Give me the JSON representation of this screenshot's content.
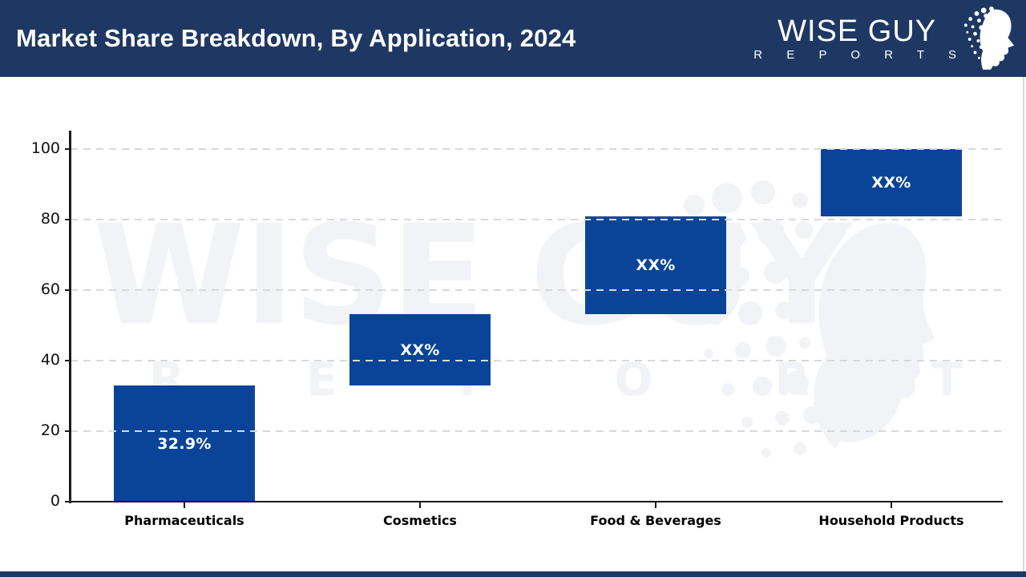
{
  "header": {
    "title": "Market Share Breakdown, By Application, 2024",
    "logo": {
      "line1": "WISE GUY",
      "line2": "R E P O R T S"
    }
  },
  "watermark": {
    "line1": "WISE GUY",
    "line2": "R E P O R T S"
  },
  "colors": {
    "header_bg": "#1f3863",
    "footer_bg": "#1f3863",
    "bar": "#0a4499",
    "grid": "#d9d9d9",
    "axis": "#1a1a1a",
    "value_label": "#ffffff",
    "watermark": "#f2f3f6",
    "edge_line": "#d9d9d9"
  },
  "chart_data": {
    "type": "bar",
    "variant": "waterfall",
    "title": "Market Share Breakdown, By Application, 2024",
    "categories": [
      "Pharmaceuticals",
      "Cosmetics",
      "Food & Beverages",
      "Household Products"
    ],
    "segments": [
      {
        "category": "Pharmaceuticals",
        "start": 0,
        "end": 32.9,
        "label": "32.9%"
      },
      {
        "category": "Cosmetics",
        "start": 32.9,
        "end": 53.2,
        "label": "XX%"
      },
      {
        "category": "Food & Beverages",
        "start": 53.2,
        "end": 80.9,
        "label": "XX%"
      },
      {
        "category": "Household Products",
        "start": 80.9,
        "end": 100,
        "label": "XX%"
      }
    ],
    "yticks": [
      0,
      20,
      40,
      60,
      80,
      100
    ],
    "ylim": [
      0,
      105
    ],
    "xlabel": "",
    "ylabel": "",
    "grid": "horizontal-dashed",
    "legend": false
  }
}
